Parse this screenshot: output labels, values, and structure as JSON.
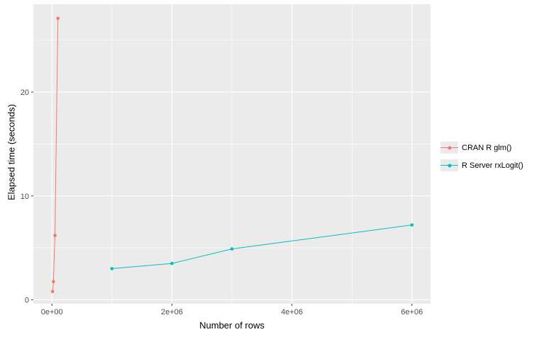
{
  "chart_data": {
    "type": "line",
    "title": "",
    "xlabel": "Number of rows",
    "ylabel": "Elapsed time (seconds)",
    "x_ticks": {
      "labels": [
        "0e+00",
        "2e+06",
        "4e+06",
        "6e+06"
      ],
      "values": [
        0,
        2000000,
        4000000,
        6000000
      ],
      "minor": [
        1000000,
        3000000,
        5000000
      ]
    },
    "y_ticks": {
      "labels": [
        "0",
        "10",
        "20"
      ],
      "values": [
        0,
        10,
        20
      ],
      "minor": [
        5,
        15,
        25
      ]
    },
    "xlim": [
      -310000,
      6310000
    ],
    "ylim": [
      -0.38,
      28.46
    ],
    "grid": "white major and minor gridlines on grey panel",
    "legend_position": "right-middle",
    "series": [
      {
        "name": "CRAN R glm()",
        "color": "#F8766D",
        "x": [
          10000,
          25000,
          50000,
          100000
        ],
        "y": [
          0.8,
          1.75,
          6.2,
          27.1
        ]
      },
      {
        "name": "R Server rxLogit()",
        "color": "#00BFC4",
        "x": [
          1000000,
          2000000,
          3000000,
          6000000
        ],
        "y": [
          3.0,
          3.5,
          4.9,
          7.2
        ]
      }
    ]
  },
  "colors": {
    "background": "#FFFFFF",
    "panel_bg": "#EBEBEB",
    "gridline": "#FFFFFF",
    "tick_mark": "#333333",
    "tick_label": "#4D4D4D",
    "axis_title": "#000000",
    "legend_key_bg": "#EBEBEB",
    "legend_text": "#000000"
  }
}
